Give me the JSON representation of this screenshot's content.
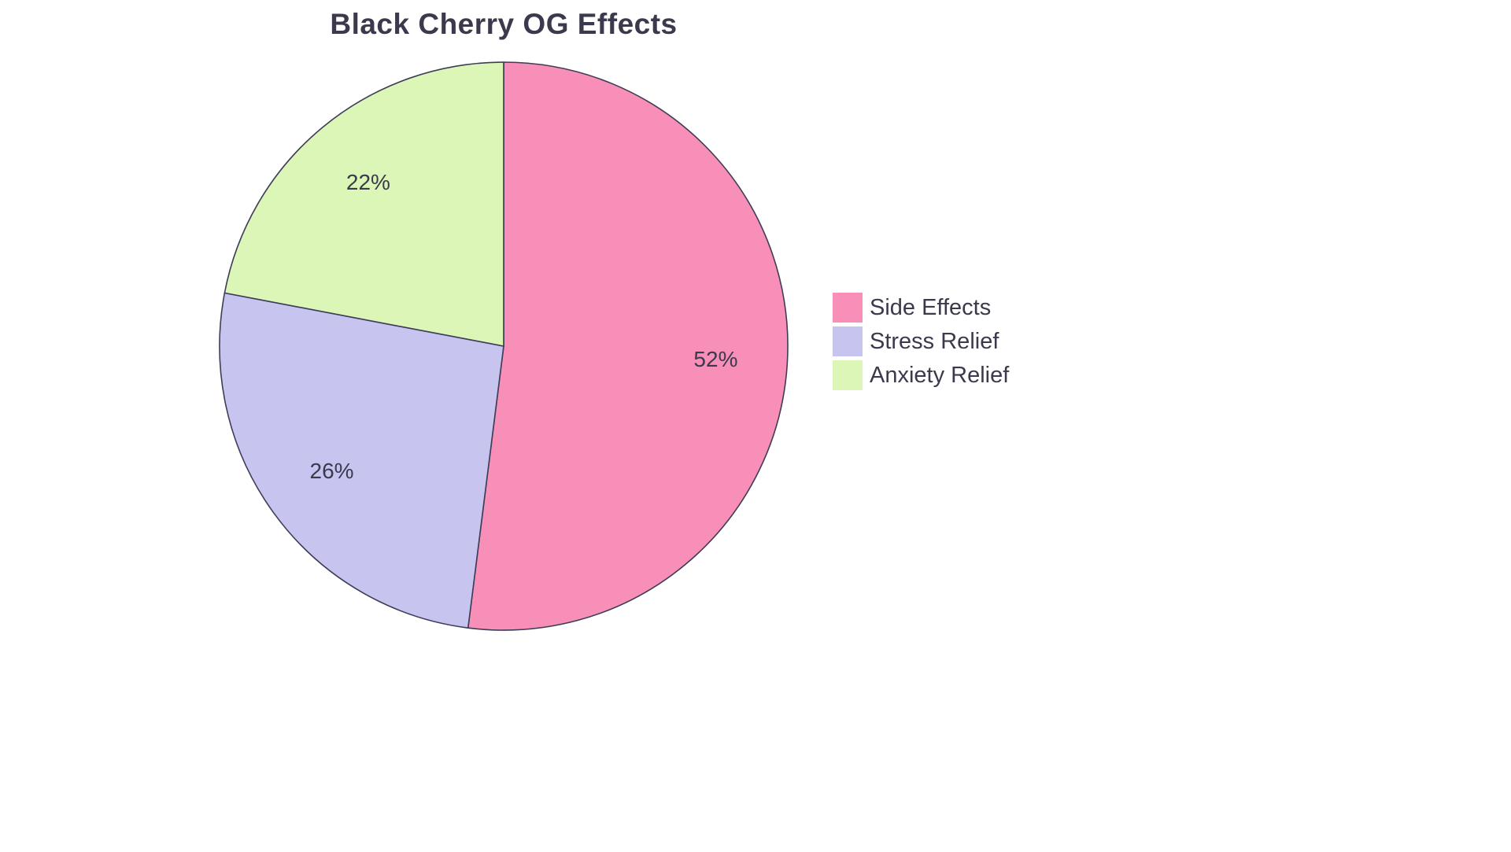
{
  "title": "Black Cherry OG Effects",
  "chart_data": {
    "type": "pie",
    "title": "Black Cherry OG Effects",
    "labels": [
      "Side Effects",
      "Stress Relief",
      "Anxiety Relief"
    ],
    "values": [
      52,
      26,
      22
    ],
    "display_values": [
      "52%",
      "26%",
      "22%"
    ],
    "colors": [
      "#F78FB8",
      "#C7C4F0",
      "#DBF6B7"
    ],
    "stroke_color": "#3D3D56",
    "text_color": "#3A3A4C",
    "legend_position": "right",
    "start_angle": "top",
    "direction": "clockwise"
  }
}
